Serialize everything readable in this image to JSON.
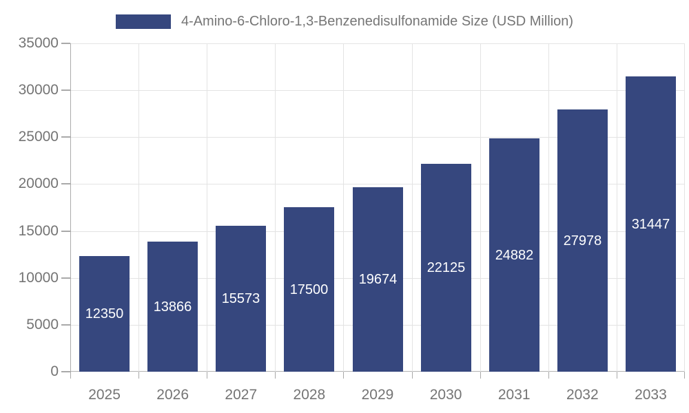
{
  "chart_data": {
    "type": "bar",
    "title": "4-Amino-6-Chloro-1,3-Benzenedisulfonamide Size (USD Million)",
    "categories": [
      "2025",
      "2026",
      "2027",
      "2028",
      "2029",
      "2030",
      "2031",
      "2032",
      "2033"
    ],
    "values": [
      12350,
      13866,
      15573,
      17500,
      19674,
      22125,
      24882,
      27978,
      31447
    ],
    "bar_labels": [
      "12350",
      "13866",
      "15573",
      "17500",
      "19674",
      "22125",
      "24882",
      "27978",
      "31447"
    ],
    "xlabel": "",
    "ylabel": "",
    "ylim": [
      0,
      35000
    ],
    "yticks": [
      0,
      5000,
      10000,
      15000,
      20000,
      25000,
      30000,
      35000
    ],
    "grid": true,
    "legend_position": "top-center",
    "colors": {
      "bar": "#36477E",
      "bar_label_text": "#ffffff",
      "axis_text": "#747474",
      "legend_text": "#757575",
      "gridline": "#e3e3e3",
      "axis_line": "#ababab",
      "background": "#ffffff"
    }
  }
}
